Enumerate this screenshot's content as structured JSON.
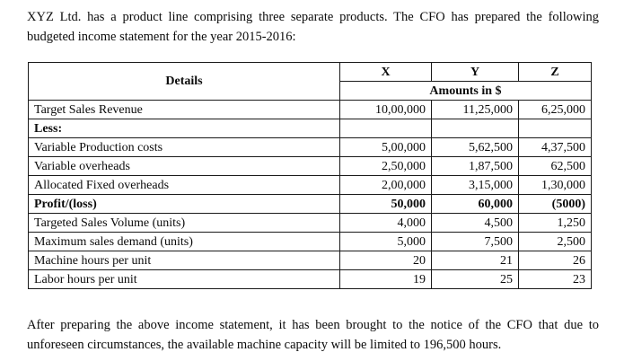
{
  "intro_paragraph": "XYZ Ltd. has a product line comprising three separate products. The CFO has prepared the following budgeted income statement for the year 2015-2016:",
  "closing_paragraph": "After preparing the above income statement, it has been brought to the notice of the CFO that due to unforeseen circumstances, the available machine capacity will be limited to 196,500 hours.",
  "table": {
    "details_header": "Details",
    "product_columns": [
      "X",
      "Y",
      "Z"
    ],
    "amounts_header": "Amounts in $",
    "rows": [
      {
        "label": "Target Sales Revenue",
        "x": "10,00,000",
        "y": "11,25,000",
        "z": "6,25,000",
        "bold_label": false,
        "bold_values": false
      },
      {
        "label": "Less:",
        "x": "",
        "y": "",
        "z": "",
        "bold_label": true,
        "bold_values": false
      },
      {
        "label": "Variable Production costs",
        "x": "5,00,000",
        "y": "5,62,500",
        "z": "4,37,500",
        "bold_label": false,
        "bold_values": false
      },
      {
        "label": "Variable overheads",
        "x": "2,50,000",
        "y": "1,87,500",
        "z": "62,500",
        "bold_label": false,
        "bold_values": false
      },
      {
        "label": "Allocated Fixed overheads",
        "x": "2,00,000",
        "y": "3,15,000",
        "z": "1,30,000",
        "bold_label": false,
        "bold_values": false
      },
      {
        "label": "Profit/(loss)",
        "x": "50,000",
        "y": "60,000",
        "z": "(5000)",
        "bold_label": true,
        "bold_values": true
      },
      {
        "label": "Targeted Sales Volume (units)",
        "x": "4,000",
        "y": "4,500",
        "z": "1,250",
        "bold_label": false,
        "bold_values": false
      },
      {
        "label": "Maximum sales demand (units)",
        "x": "5,000",
        "y": "7,500",
        "z": "2,500",
        "bold_label": false,
        "bold_values": false
      },
      {
        "label": "Machine hours per unit",
        "x": "20",
        "y": "21",
        "z": "26",
        "bold_label": false,
        "bold_values": false
      },
      {
        "label": "Labor hours per unit",
        "x": "19",
        "y": "25",
        "z": "23",
        "bold_label": false,
        "bold_values": false
      }
    ]
  }
}
